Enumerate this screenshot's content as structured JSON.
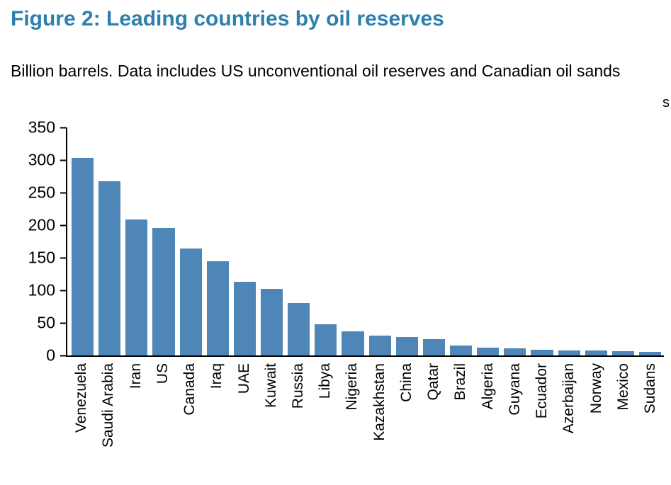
{
  "title": "Figure 2: Leading countries by oil reserves",
  "subtitle": "Billion barrels. Data includes US unconventional oil reserves and Canadian oil sands",
  "truncated_right_text": "s",
  "colors": {
    "title": "#2E7FAE",
    "bar": "#4E86B8",
    "axis": "#000000",
    "background": "#FFFFFF"
  },
  "chart_data": {
    "type": "bar",
    "title": "Figure 2: Leading countries by oil reserves",
    "subtitle": "Billion barrels. Data includes US unconventional oil reserves and Canadian oil sands",
    "categories": [
      "Venezuela",
      "Saudi Arabia",
      "Iran",
      "US",
      "Canada",
      "Iraq",
      "UAE",
      "Kuwait",
      "Russia",
      "Libya",
      "Nigeria",
      "Kazakhstan",
      "China",
      "Qatar",
      "Brazil",
      "Algeria",
      "Guyana",
      "Ecuador",
      "Azerbaijan",
      "Norway",
      "Mexico",
      "Sudans"
    ],
    "values": [
      303,
      267,
      209,
      196,
      164,
      145,
      113,
      102,
      80,
      48,
      37,
      30,
      28,
      25,
      15,
      12,
      11,
      9,
      8,
      8,
      6,
      5
    ],
    "xlabel": "",
    "ylabel": "Billion barrels",
    "ylim": [
      0,
      350
    ],
    "yticks": [
      0,
      50,
      100,
      150,
      200,
      250,
      300,
      350
    ],
    "grid": false,
    "legend": "none",
    "bar_color": "#4E86B8",
    "x_tick_rotation": 90
  }
}
